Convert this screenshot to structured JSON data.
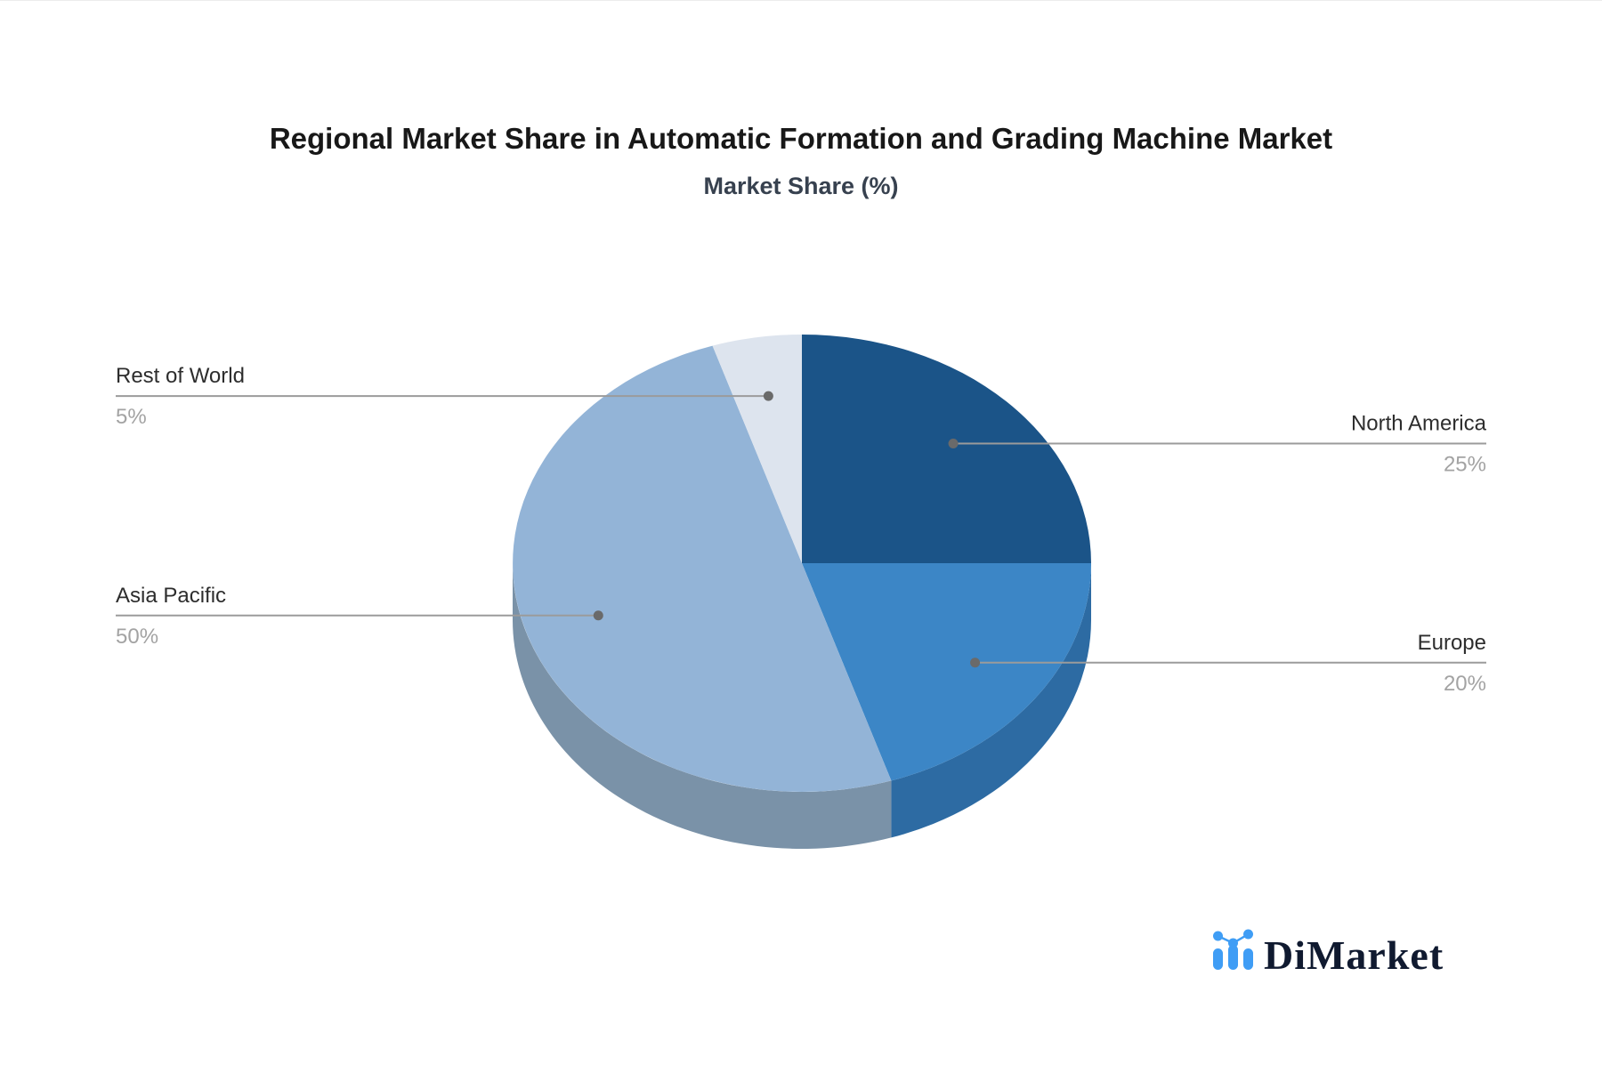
{
  "header": {
    "title": "Regional Market Share in Automatic Formation and Grading Machine Market",
    "subtitle": "Market Share (%)"
  },
  "chart_data": {
    "type": "pie",
    "style": "3d",
    "title": "Regional Market Share in Automatic Formation and Grading Machine Market",
    "subtitle": "Market Share (%)",
    "unit": "%",
    "start_angle_deg": 0,
    "direction": "clockwise",
    "legend_position": "none",
    "slices": [
      {
        "label": "North America",
        "value": 25,
        "color": "#1B5488",
        "shade": "#16436C"
      },
      {
        "label": "Europe",
        "value": 20,
        "color": "#3C86C6",
        "shade": "#2D6BA3"
      },
      {
        "label": "Asia Pacific",
        "value": 50,
        "color": "#93B4D7",
        "shade": "#7A92A8"
      },
      {
        "label": "Rest of World",
        "value": 5,
        "color": "#DDE4EE",
        "shade": "#AEBBCB"
      }
    ],
    "labels": {
      "style": "leader-line",
      "name_color": "#2D2D2D",
      "value_color": "#A3A3A3",
      "line_color": "#9B9B9B",
      "dot_color": "#6A6A6A"
    }
  },
  "logo": {
    "text": "DiMarket",
    "icon": "bar-line-chart-icon",
    "text_color": "#101A30",
    "accent_color": "#3F9DF5"
  }
}
